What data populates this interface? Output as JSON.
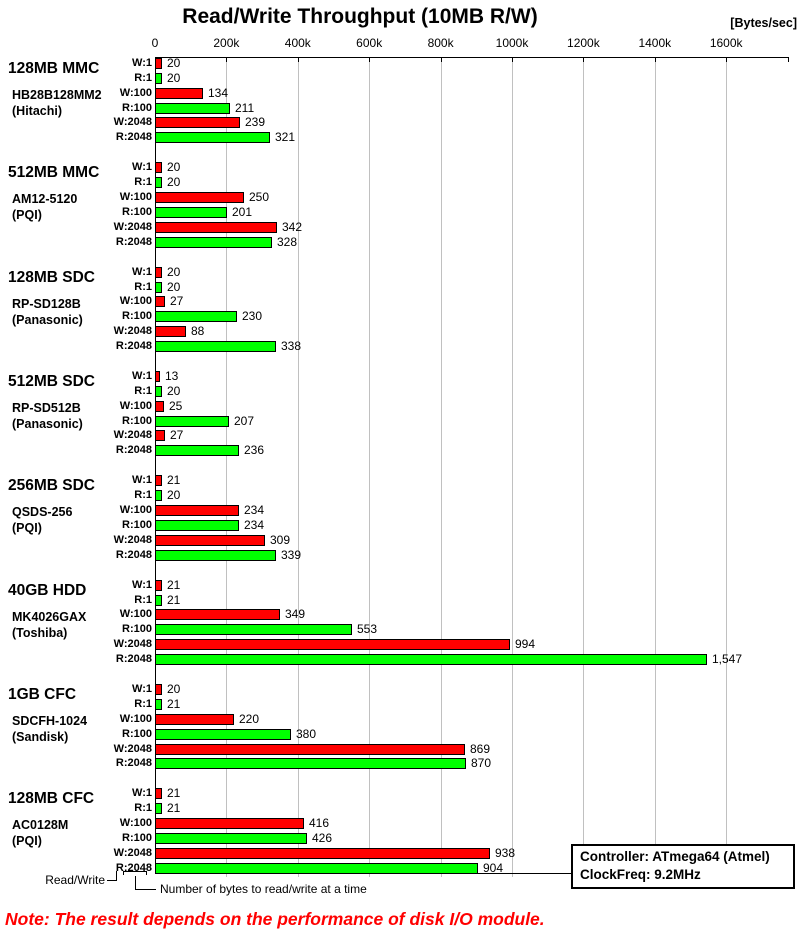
{
  "title": "Read/Write Throughput (10MB R/W)",
  "unit_label": "[Bytes/sec]",
  "note": "Note: The result depends on the performance of disk I/O module.",
  "note_color": "#ff0000",
  "info_box": {
    "controller_line": "Controller: ATmega64 (Atmel)",
    "clock_line": "ClockFreq: 9.2MHz"
  },
  "legend": {
    "read_write_label": "Read/Write",
    "bytes_label": "Number of bytes to read/write at a time"
  },
  "chart_data": {
    "type": "bar",
    "orientation": "horizontal",
    "title": "Read/Write Throughput (10MB R/W)",
    "xlabel": "[Bytes/sec]",
    "x_tick_labels": [
      "0",
      "200k",
      "400k",
      "600k",
      "800k",
      "1000k",
      "1200k",
      "1400k",
      "1600k"
    ],
    "x_tick_values_k": [
      0,
      200,
      400,
      600,
      800,
      1000,
      1200,
      1400,
      1600
    ],
    "xlim_k": [
      0,
      1775
    ],
    "grid": true,
    "bar_categories": [
      "W:1",
      "R:1",
      "W:100",
      "R:100",
      "W:2048",
      "R:2048"
    ],
    "colors": {
      "write_bar": "#ff0000",
      "read_bar": "#00ff00",
      "gridline": "#c0c0c0",
      "axis": "#000000"
    },
    "values_are_k_bytes_per_sec": true,
    "groups": [
      {
        "label": "128MB MMC",
        "model": "HB28B128MM2",
        "vendor": "(Hitachi)",
        "values_k": [
          20,
          20,
          134,
          211,
          239,
          321
        ],
        "value_labels": [
          "20",
          "20",
          "134",
          "211",
          "239",
          "321"
        ]
      },
      {
        "label": "512MB MMC",
        "model": "AM12-5120",
        "vendor": "(PQI)",
        "values_k": [
          20,
          20,
          250,
          201,
          342,
          328
        ],
        "value_labels": [
          "20",
          "20",
          "250",
          "201",
          "342",
          "328"
        ]
      },
      {
        "label": "128MB SDC",
        "model": "RP-SD128B",
        "vendor": "(Panasonic)",
        "values_k": [
          20,
          20,
          27,
          230,
          88,
          338
        ],
        "value_labels": [
          "20",
          "20",
          "27",
          "230",
          "88",
          "338"
        ]
      },
      {
        "label": "512MB SDC",
        "model": "RP-SD512B",
        "vendor": "(Panasonic)",
        "values_k": [
          13,
          20,
          25,
          207,
          27,
          236
        ],
        "value_labels": [
          "13",
          "20",
          "25",
          "207",
          "27",
          "236"
        ]
      },
      {
        "label": "256MB SDC",
        "model": "QSDS-256",
        "vendor": "(PQI)",
        "values_k": [
          21,
          20,
          234,
          234,
          309,
          339
        ],
        "value_labels": [
          "21",
          "20",
          "234",
          "234",
          "309",
          "339"
        ]
      },
      {
        "label": "40GB HDD",
        "model": "MK4026GAX",
        "vendor": "(Toshiba)",
        "values_k": [
          21,
          21,
          349,
          553,
          994,
          1547
        ],
        "value_labels": [
          "21",
          "21",
          "349",
          "553",
          "994",
          "1,547"
        ]
      },
      {
        "label": "1GB CFC",
        "model": "SDCFH-1024",
        "vendor": "(Sandisk)",
        "values_k": [
          20,
          21,
          220,
          380,
          869,
          870
        ],
        "value_labels": [
          "20",
          "21",
          "220",
          "380",
          "869",
          "870"
        ]
      },
      {
        "label": "128MB CFC",
        "model": "AC0128M",
        "vendor": "(PQI)",
        "values_k": [
          21,
          21,
          416,
          426,
          938,
          904
        ],
        "value_labels": [
          "21",
          "21",
          "416",
          "426",
          "938",
          "904"
        ]
      }
    ]
  }
}
